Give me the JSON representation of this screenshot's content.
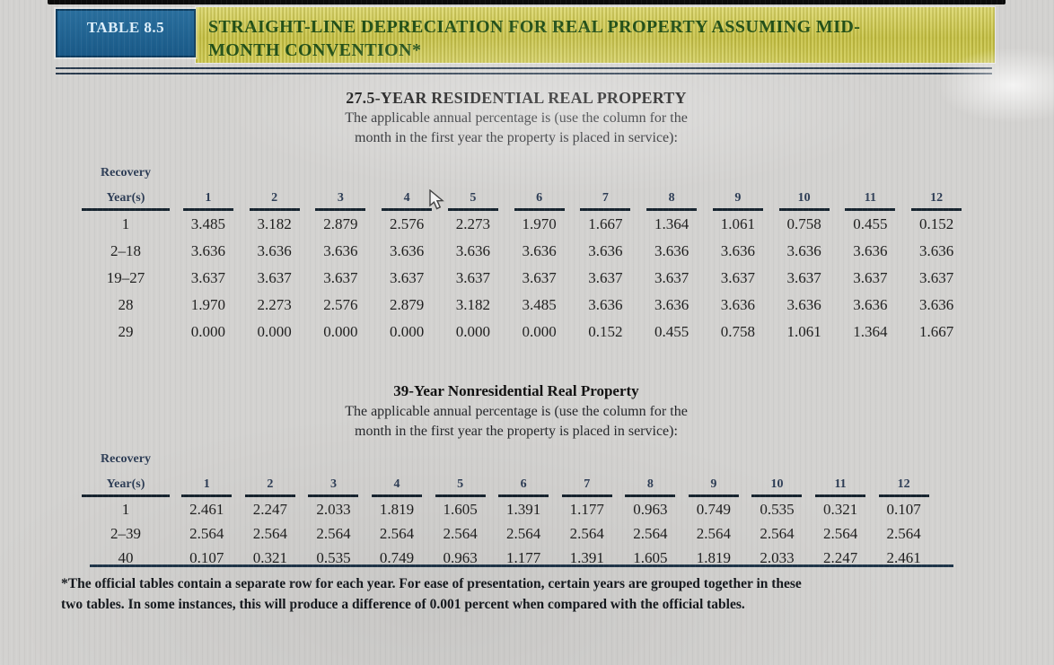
{
  "header": {
    "label": "TABLE 8.5",
    "title_line1": "STRAIGHT-LINE DEPRECIATION FOR REAL PROPERTY ASSUMING MID-",
    "title_line2": "MONTH CONVENTION*"
  },
  "colors": {
    "page_bg": "#d3d2d0",
    "label_box_bg": "#1e6190",
    "label_box_border": "#0e3d60",
    "banner_bg": "#c8c347",
    "banner_text": "#235019",
    "rule": "#22384e",
    "table_header_text": "#2c3c55",
    "body_text": "#1e1e1e"
  },
  "tables": [
    {
      "title": "27.5-YEAR RESIDENTIAL REAL PROPERTY",
      "subtitle_line1": "The applicable annual percentage is (use the column for the",
      "subtitle_line2": "month in the first year the property is placed in service):",
      "corner_line1": "Recovery",
      "corner_line2": "Year(s)",
      "columns": [
        "1",
        "2",
        "3",
        "4",
        "5",
        "6",
        "7",
        "8",
        "9",
        "10",
        "11",
        "12"
      ],
      "rows": [
        {
          "label": "1",
          "values": [
            "3.485",
            "3.182",
            "2.879",
            "2.576",
            "2.273",
            "1.970",
            "1.667",
            "1.364",
            "1.061",
            "0.758",
            "0.455",
            "0.152"
          ]
        },
        {
          "label": "2–18",
          "values": [
            "3.636",
            "3.636",
            "3.636",
            "3.636",
            "3.636",
            "3.636",
            "3.636",
            "3.636",
            "3.636",
            "3.636",
            "3.636",
            "3.636"
          ]
        },
        {
          "label": "19–27",
          "values": [
            "3.637",
            "3.637",
            "3.637",
            "3.637",
            "3.637",
            "3.637",
            "3.637",
            "3.637",
            "3.637",
            "3.637",
            "3.637",
            "3.637"
          ]
        },
        {
          "label": "28",
          "values": [
            "1.970",
            "2.273",
            "2.576",
            "2.879",
            "3.182",
            "3.485",
            "3.636",
            "3.636",
            "3.636",
            "3.636",
            "3.636",
            "3.636"
          ]
        },
        {
          "label": "29",
          "values": [
            "0.000",
            "0.000",
            "0.000",
            "0.000",
            "0.000",
            "0.000",
            "0.152",
            "0.455",
            "0.758",
            "1.061",
            "1.364",
            "1.667"
          ]
        }
      ]
    },
    {
      "title": "39-Year Nonresidential Real Property",
      "subtitle_line1": "The applicable annual percentage is (use the column for the",
      "subtitle_line2": "month in the first year the property is placed in service):",
      "corner_line1": "Recovery",
      "corner_line2": "Year(s)",
      "columns": [
        "1",
        "2",
        "3",
        "4",
        "5",
        "6",
        "7",
        "8",
        "9",
        "10",
        "11",
        "12"
      ],
      "rows": [
        {
          "label": "1",
          "values": [
            "2.461",
            "2.247",
            "2.033",
            "1.819",
            "1.605",
            "1.391",
            "1.177",
            "0.963",
            "0.749",
            "0.535",
            "0.321",
            "0.107"
          ]
        },
        {
          "label": "2–39",
          "values": [
            "2.564",
            "2.564",
            "2.564",
            "2.564",
            "2.564",
            "2.564",
            "2.564",
            "2.564",
            "2.564",
            "2.564",
            "2.564",
            "2.564"
          ]
        },
        {
          "label": "40",
          "values": [
            "0.107",
            "0.321",
            "0.535",
            "0.749",
            "0.963",
            "1.177",
            "1.391",
            "1.605",
            "1.819",
            "2.033",
            "2.247",
            "2.461"
          ]
        }
      ]
    }
  ],
  "footnote": {
    "line1": "*The official tables contain a separate row for each year. For ease of presentation, certain years are grouped together in these",
    "line2": "two tables. In some instances, this will produce a difference of 0.001 percent when compared with the official tables."
  }
}
